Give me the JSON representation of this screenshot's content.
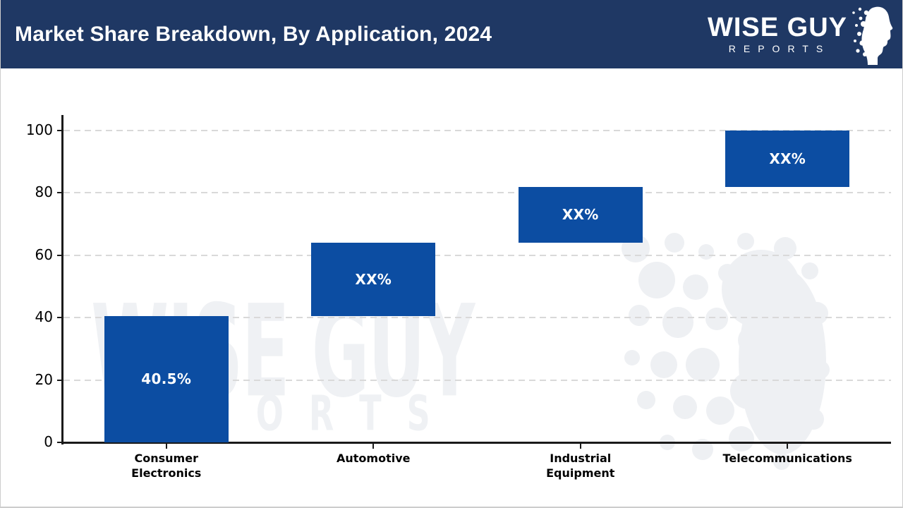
{
  "header": {
    "title": "Market Share Breakdown, By Application, 2024",
    "bg_color": "#1f3864",
    "logo": {
      "line1": "WISE GUY",
      "line2": "REPORTS"
    }
  },
  "watermark": {
    "line1": "WISE GUY",
    "line2": "P O R T S"
  },
  "chart_data": {
    "type": "bar",
    "subtype": "waterfall",
    "title": "Market Share Breakdown, By Application, 2024",
    "categories": [
      "Consumer\nElectronics",
      "Automotive",
      "Industrial\nEquipment",
      "Telecommunications"
    ],
    "series": [
      {
        "name": "Market Share (%)",
        "segments": [
          {
            "category": "Consumer Electronics",
            "start": 0,
            "end": 40.5,
            "label": "40.5%"
          },
          {
            "category": "Automotive",
            "start": 40.5,
            "end": 64,
            "label": "XX%"
          },
          {
            "category": "Industrial Equipment",
            "start": 64,
            "end": 82,
            "label": "XX%"
          },
          {
            "category": "Telecommunications",
            "start": 82,
            "end": 100,
            "label": "XX%"
          }
        ]
      }
    ],
    "yticks": [
      0,
      20,
      40,
      60,
      80,
      100
    ],
    "ylim": [
      0,
      100
    ],
    "xlabel": "",
    "ylabel": "",
    "bar_color": "#0c4da2",
    "grid": "horizontal-dashed",
    "legend": "none"
  }
}
